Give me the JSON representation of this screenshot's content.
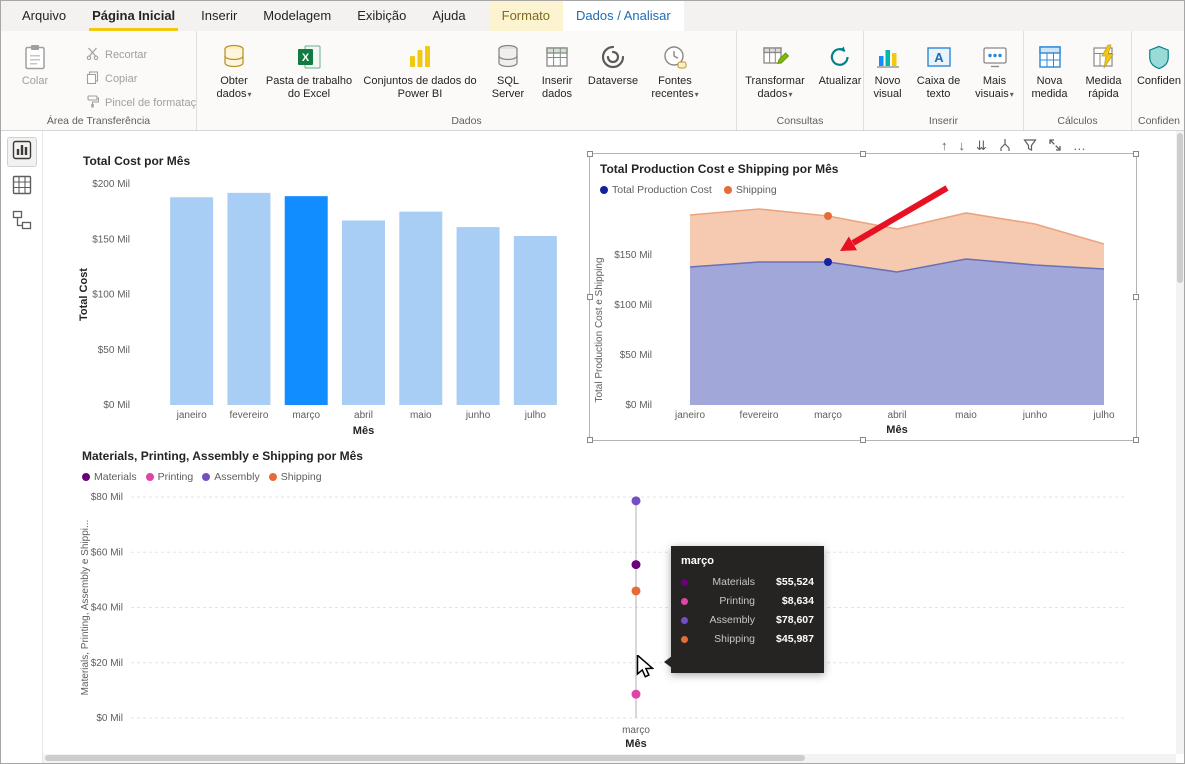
{
  "tabs": {
    "items": [
      {
        "label": "Arquivo"
      },
      {
        "label": "Página Inicial"
      },
      {
        "label": "Inserir"
      },
      {
        "label": "Modelagem"
      },
      {
        "label": "Exibição"
      },
      {
        "label": "Ajuda"
      }
    ],
    "selected": "Página Inicial",
    "contextual": [
      {
        "label": "Formato"
      },
      {
        "label": "Dados / Analisar"
      }
    ]
  },
  "ribbon": {
    "groups": {
      "clipboard": {
        "label": "Área de Transferência",
        "buttons": {
          "colar": "Colar",
          "recortar": "Recortar",
          "copiar": "Copiar",
          "pincel": "Pincel de formatação"
        }
      },
      "dados": {
        "label": "Dados",
        "buttons": {
          "obter_dados": "Obter dados",
          "excel": "Pasta de trabalho do Excel",
          "conjuntos": "Conjuntos de dados do Power BI",
          "sql": "SQL Server",
          "inserir_dados": "Inserir dados",
          "dataverse": "Dataverse",
          "fontes": "Fontes recentes"
        }
      },
      "consultas": {
        "label": "Consultas",
        "buttons": {
          "transformar": "Transformar dados",
          "atualizar": "Atualizar"
        }
      },
      "inserir": {
        "label": "Inserir",
        "buttons": {
          "novo_visual": "Novo visual",
          "caixa_texto": "Caixa de texto",
          "mais_visuais": "Mais visuais"
        }
      },
      "calculos": {
        "label": "Cálculos",
        "buttons": {
          "nova_medida": "Nova medida",
          "medida_rapida": "Medida rápida"
        }
      },
      "confidencial": {
        "label": "Confiden",
        "buttons": {
          "confidencial": "Confiden"
        }
      }
    }
  },
  "icons": {
    "chevron_down": "▾",
    "drill_up": "↑",
    "drill_down": "↓",
    "go_next_level": "⇊",
    "more_options": "…"
  },
  "colors": {
    "highlight_blue": "#118DFF",
    "bar_light": "#A9CEF5",
    "dark_blue": "#12239E",
    "orange": "#E66C37",
    "materials": "#6B007B",
    "printing": "#E044A7",
    "assembly": "#744EC2",
    "accent_yellow": "#F2C811",
    "annotation_red": "#E81123"
  },
  "sidebar": {
    "views": [
      {
        "name": "report",
        "selected": true
      },
      {
        "name": "data",
        "selected": false
      },
      {
        "name": "model",
        "selected": false
      }
    ]
  },
  "tooltip": {
    "title": "março",
    "rows": [
      {
        "series": "Materials",
        "value": "$55,524"
      },
      {
        "series": "Printing",
        "value": "$8,634"
      },
      {
        "series": "Assembly",
        "value": "$78,607"
      },
      {
        "series": "Shipping",
        "value": "$45,987"
      }
    ]
  },
  "chart_data": [
    {
      "type": "bar",
      "title": "Total Cost por Mês",
      "xlabel": "Mês",
      "ylabel": "Total Cost",
      "unit": "Mil",
      "categories": [
        "janeiro",
        "fevereiro",
        "março",
        "abril",
        "maio",
        "junho",
        "julho"
      ],
      "values": [
        188,
        192,
        189,
        167,
        175,
        161,
        153
      ],
      "ylim": [
        0,
        200
      ],
      "yticks": [
        {
          "value": 0,
          "label": "$0 Mil"
        },
        {
          "value": 50,
          "label": "$50 Mil"
        },
        {
          "value": 100,
          "label": "$100 Mil"
        },
        {
          "value": 150,
          "label": "$150 Mil"
        },
        {
          "value": 200,
          "label": "$200 Mil"
        }
      ],
      "highlight_category": "março",
      "grid": false,
      "legend": "none"
    },
    {
      "type": "area",
      "title": "Total Production Cost e Shipping por Mês",
      "xlabel": "Mês",
      "ylabel": "Total Production Cost e Shipping",
      "unit": "Mil",
      "stacked": true,
      "categories": [
        "janeiro",
        "fevereiro",
        "março",
        "abril",
        "maio",
        "junho",
        "julho"
      ],
      "series": [
        {
          "name": "Total Production Cost",
          "color": "#12239E",
          "fill": "#A2A7D9",
          "line": "#6A70B8",
          "values": [
            138,
            143,
            143,
            133,
            146,
            140,
            136
          ]
        },
        {
          "name": "Shipping",
          "color": "#E66C37",
          "fill": "#F6CAB1",
          "line": "#EBA47F",
          "values": [
            52,
            53,
            46,
            43,
            46,
            41,
            25
          ]
        }
      ],
      "ylim": [
        0,
        200
      ],
      "yticks": [
        {
          "value": 0,
          "label": "$0 Mil"
        },
        {
          "value": 50,
          "label": "$50 Mil"
        },
        {
          "value": 100,
          "label": "$100 Mil"
        },
        {
          "value": 150,
          "label": "$150 Mil"
        }
      ],
      "hover_category": "março",
      "grid": false,
      "legend": "top-left"
    },
    {
      "type": "scatter",
      "title": "Materials, Printing, Assembly e Shipping por Mês",
      "xlabel": "Mês",
      "ylabel": "Materials, Printing, Assembly e Shipping",
      "ylabel_display": "Materials, Printing, Assembly e Shippi...",
      "unit": "Mil",
      "categories": [
        "março"
      ],
      "series": [
        {
          "name": "Materials",
          "color": "#6B007B",
          "values": [
            55.524
          ]
        },
        {
          "name": "Printing",
          "color": "#E044A7",
          "values": [
            8.634
          ]
        },
        {
          "name": "Assembly",
          "color": "#744EC2",
          "values": [
            78.607
          ]
        },
        {
          "name": "Shipping",
          "color": "#E66C37",
          "values": [
            45.987
          ]
        }
      ],
      "ylim": [
        0,
        80
      ],
      "yticks": [
        {
          "value": 0,
          "label": "$0 Mil"
        },
        {
          "value": 20,
          "label": "$20 Mil"
        },
        {
          "value": 40,
          "label": "$40 Mil"
        },
        {
          "value": 60,
          "label": "$60 Mil"
        },
        {
          "value": 80,
          "label": "$80 Mil"
        }
      ],
      "grid": true,
      "legend": "top-left"
    }
  ]
}
